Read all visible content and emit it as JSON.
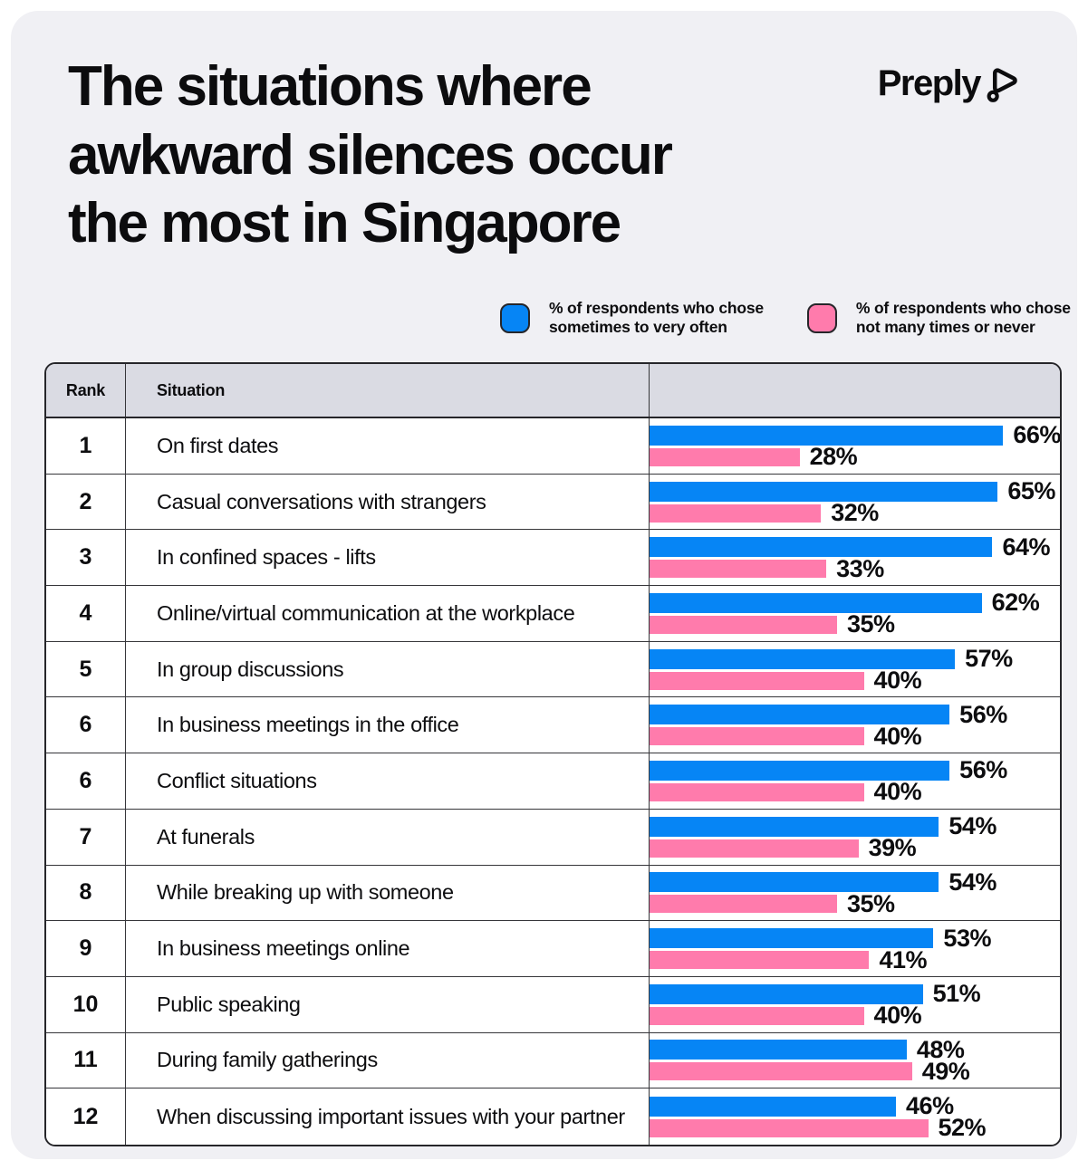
{
  "header": {
    "title": "The situations where\nawkward silences occur\nthe most in Singapore",
    "brand": "Preply"
  },
  "legend": {
    "items": [
      {
        "id": "sometimes",
        "label": "% of respondents who chose\nsometimes to very often",
        "color": "#0685f5"
      },
      {
        "id": "not_many",
        "label": "% of respondents who chose\nnot many times or never",
        "color": "#ff7bac"
      }
    ]
  },
  "table": {
    "columns": {
      "rank": "Rank",
      "situation": "Situation"
    },
    "rows": [
      {
        "rank": "1",
        "situation": "On first dates",
        "sometimes": 66,
        "not_many": 28
      },
      {
        "rank": "2",
        "situation": "Casual conversations with strangers",
        "sometimes": 65,
        "not_many": 32
      },
      {
        "rank": "3",
        "situation": "In confined spaces - lifts",
        "sometimes": 64,
        "not_many": 33
      },
      {
        "rank": "4",
        "situation": "Online/virtual communication at the workplace",
        "sometimes": 62,
        "not_many": 35
      },
      {
        "rank": "5",
        "situation": "In group discussions",
        "sometimes": 57,
        "not_many": 40
      },
      {
        "rank": "6",
        "situation": "In business meetings in the office",
        "sometimes": 56,
        "not_many": 40
      },
      {
        "rank": "6",
        "situation": "Conflict situations",
        "sometimes": 56,
        "not_many": 40
      },
      {
        "rank": "7",
        "situation": "At funerals",
        "sometimes": 54,
        "not_many": 39
      },
      {
        "rank": "8",
        "situation": "While breaking up with someone",
        "sometimes": 54,
        "not_many": 35
      },
      {
        "rank": "9",
        "situation": "In business meetings online",
        "sometimes": 53,
        "not_many": 41
      },
      {
        "rank": "10",
        "situation": "Public speaking",
        "sometimes": 51,
        "not_many": 40
      },
      {
        "rank": "11",
        "situation": "During family gatherings",
        "sometimes": 48,
        "not_many": 49
      },
      {
        "rank": "12",
        "situation": "When discussing important issues with your partner",
        "sometimes": 46,
        "not_many": 52
      }
    ]
  },
  "chart_data": {
    "type": "bar",
    "orientation": "horizontal",
    "title": "The situations where awkward silences occur the most in Singapore",
    "categories": [
      "On first dates",
      "Casual conversations with strangers",
      "In confined spaces - lifts",
      "Online/virtual communication at the workplace",
      "In group discussions",
      "In business meetings in the office",
      "Conflict situations",
      "At funerals",
      "While breaking up with someone",
      "In business meetings online",
      "Public speaking",
      "During family gatherings",
      "When discussing important issues with your partner"
    ],
    "ranks": [
      "1",
      "2",
      "3",
      "4",
      "5",
      "6",
      "6",
      "7",
      "8",
      "9",
      "10",
      "11",
      "12"
    ],
    "series": [
      {
        "name": "% of respondents who chose sometimes to very often",
        "color": "#0685f5",
        "values": [
          66,
          65,
          64,
          62,
          57,
          56,
          56,
          54,
          54,
          53,
          51,
          48,
          46
        ]
      },
      {
        "name": "% of respondents who chose not many times or never",
        "color": "#ff7bac",
        "values": [
          28,
          32,
          33,
          35,
          40,
          40,
          40,
          39,
          35,
          41,
          40,
          49,
          52
        ]
      }
    ],
    "value_suffix": "%",
    "xlim": [
      0,
      76.6
    ],
    "grid": false,
    "legend_position": "top-right",
    "data_labels": true
  },
  "colors": {
    "background": "#ffffff",
    "card": "#f0f0f4",
    "table_header": "#dadbe3",
    "border": "#26262a",
    "blue": "#0685f5",
    "pink": "#ff7bac",
    "text": "#0d0d0f"
  }
}
